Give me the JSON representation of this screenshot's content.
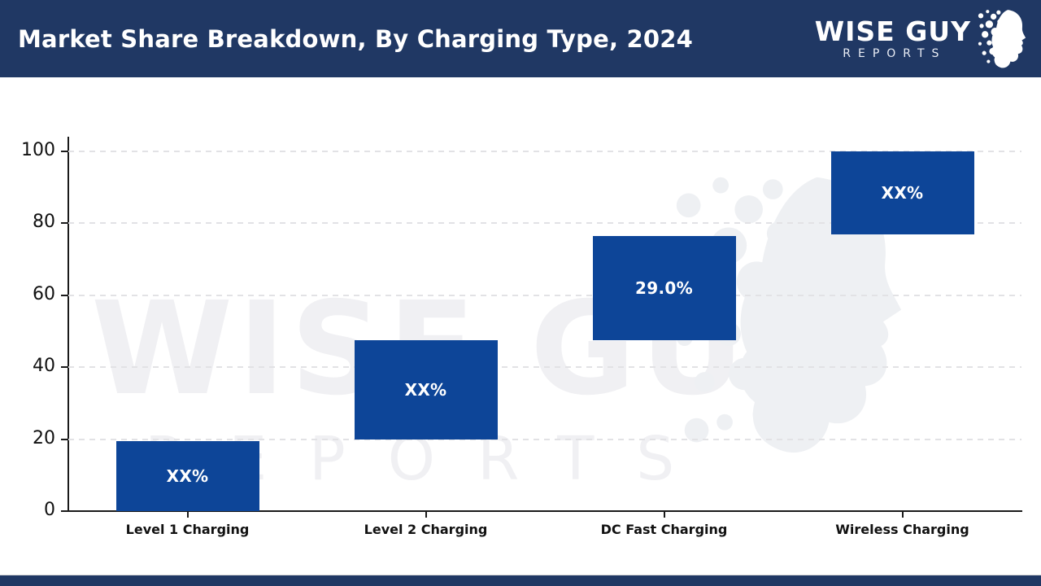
{
  "header": {
    "title": "Market Share Breakdown, By Charging Type, 2024",
    "logo": {
      "wordmark": "WISE GUY",
      "subtext": "REPORTS"
    }
  },
  "watermark": {
    "wordmark": "WISE GUY",
    "subtext": "REPORTS"
  },
  "chart_data": {
    "type": "bar",
    "variant": "floating-segment-waterfall",
    "title": "Market Share Breakdown, By Charging Type, 2024",
    "categories": [
      "Level 1 Charging",
      "Level 2 Charging",
      "DC Fast Charging",
      "Wireless Charging"
    ],
    "bars": [
      {
        "category": "Level 1 Charging",
        "start": 0,
        "end": 19.5,
        "label": "XX%"
      },
      {
        "category": "Level 2 Charging",
        "start": 20,
        "end": 47.5,
        "label": "XX%"
      },
      {
        "category": "DC Fast Charging",
        "start": 47.5,
        "end": 76.5,
        "label": "29.0%"
      },
      {
        "category": "Wireless Charging",
        "start": 77,
        "end": 100,
        "label": "XX%"
      }
    ],
    "xlabel": "",
    "ylabel": "",
    "ylim": [
      0,
      100
    ],
    "yticks": [
      0,
      20,
      40,
      60,
      80,
      100
    ],
    "grid": "horizontal-dashed",
    "legend": "none"
  },
  "colors": {
    "header_bg": "#203864",
    "footer_bg": "#203864",
    "bar": "#0d4598",
    "bar_label": "#ffffff",
    "axis": "#1a1a1a",
    "gridline": "#e2e2e5",
    "watermark": "#f0f0f3"
  }
}
